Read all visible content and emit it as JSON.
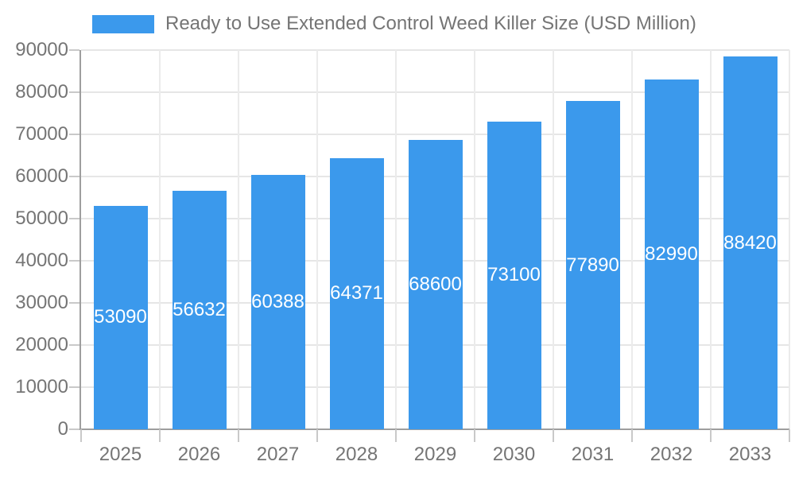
{
  "legend": {
    "label": "Ready to Use Extended Control Weed Killer Size (USD Million)"
  },
  "chart_data": {
    "type": "bar",
    "title": "Ready to Use Extended Control Weed Killer Size (USD Million)",
    "categories": [
      "2025",
      "2026",
      "2027",
      "2028",
      "2029",
      "2030",
      "2031",
      "2032",
      "2033"
    ],
    "series": [
      {
        "name": "Ready to Use Extended Control Weed Killer Size (USD Million)",
        "values": [
          53090,
          56632,
          60388,
          64371,
          68600,
          73100,
          77890,
          82990,
          88420
        ]
      }
    ],
    "xlabel": "",
    "ylabel": "",
    "ylim": [
      0,
      90000
    ],
    "ytick_step": 10000,
    "ytick_labels": [
      "0",
      "10000",
      "20000",
      "30000",
      "40000",
      "50000",
      "60000",
      "70000",
      "80000",
      "90000"
    ],
    "grid": true,
    "legend_position": "top-left",
    "bar_labels_inside": true,
    "colors": {
      "bar": "#3b99ec",
      "bar_label_text": "#ffffff",
      "axis_text": "#757575",
      "grid_horizontal": "#e6e6e6",
      "grid_vertical": "#ebebeb",
      "axis_line": "#9e9e9e",
      "tick": "#c9c9c9",
      "background": "#ffffff"
    }
  }
}
